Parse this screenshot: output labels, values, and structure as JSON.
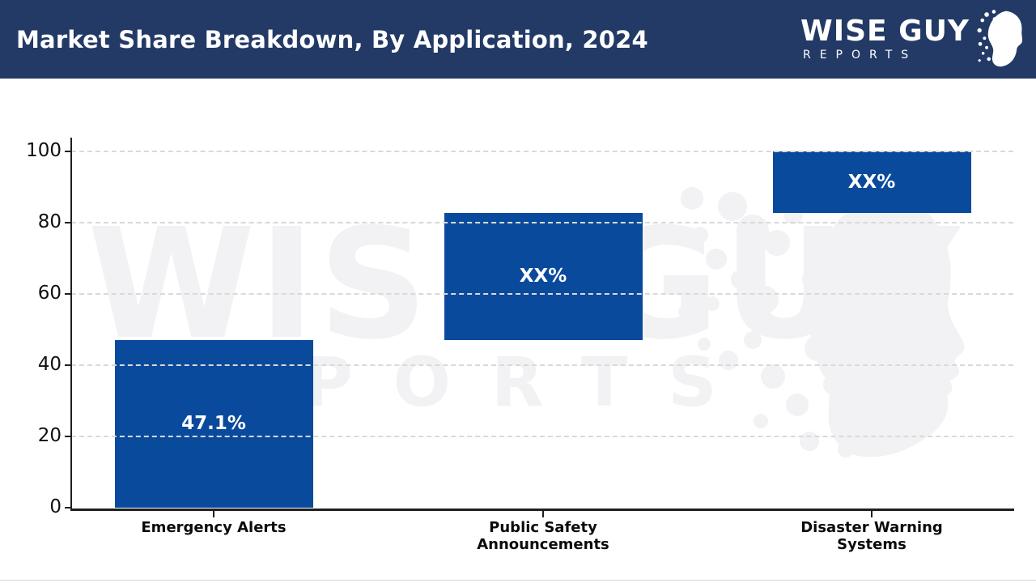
{
  "header": {
    "title": "Market Share Breakdown, By Application, 2024",
    "logo": {
      "line1": "WISE GUY",
      "line2": "REPORTS"
    }
  },
  "watermark": {
    "line1": "WISE GUY",
    "line2": "REPORTS"
  },
  "colors": {
    "header_bg": "#233a66",
    "bar": "#0a4a9c",
    "bar_label": "#ffffff",
    "gridline": "#d9d9d9",
    "axis": "#1f1f1f",
    "watermark": "#f2f2f4"
  },
  "chart_data": {
    "type": "bar",
    "subtype": "waterfall",
    "title": "Market Share Breakdown, By Application, 2024",
    "categories": [
      "Emergency Alerts",
      "Public Safety\nAnnouncements",
      "Disaster Warning\nSystems"
    ],
    "segments": [
      {
        "category": "Emergency Alerts",
        "start": 0,
        "end": 47.1,
        "value_label": "47.1%"
      },
      {
        "category": "Public Safety Announcements",
        "start": 47.1,
        "end": 82.8,
        "value_label": "XX%"
      },
      {
        "category": "Disaster Warning Systems",
        "start": 82.8,
        "end": 100,
        "value_label": "XX%"
      }
    ],
    "ylim": [
      0,
      100
    ],
    "yticks": [
      0,
      20,
      40,
      60,
      80,
      100
    ],
    "grid": "horizontal-dashed",
    "legend": "none",
    "bar_color": "#0a4a9c"
  }
}
